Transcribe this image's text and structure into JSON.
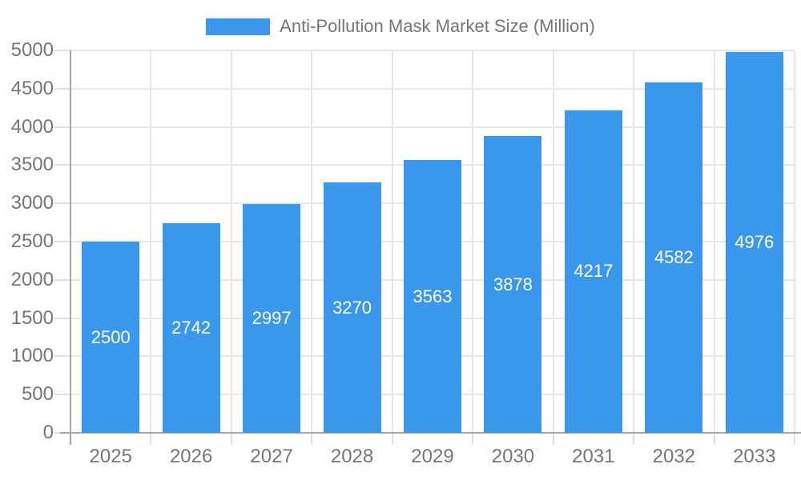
{
  "chart_data": {
    "type": "bar",
    "title": "Anti-Pollution Mask Market Size (Million)",
    "categories": [
      "2025",
      "2026",
      "2027",
      "2028",
      "2029",
      "2030",
      "2031",
      "2032",
      "2033"
    ],
    "values": [
      2500,
      2742,
      2997,
      3270,
      3563,
      3878,
      4217,
      4582,
      4976
    ],
    "series": [
      {
        "name": "Anti-Pollution Mask Market Size (Million)",
        "values": [
          2500,
          2742,
          2997,
          3270,
          3563,
          3878,
          4217,
          4582,
          4976
        ]
      }
    ],
    "xlabel": "",
    "ylabel": "",
    "ylim": [
      0,
      5000
    ],
    "ytick_step": 500,
    "yticks": [
      0,
      500,
      1000,
      1500,
      2000,
      2500,
      3000,
      3500,
      4000,
      4500,
      5000
    ],
    "grid": "both",
    "legend_position": "top-center",
    "value_label_position": "inside-center"
  },
  "colors": {
    "bar_fill": "#3998EC",
    "value_label": "#FFFFFF",
    "axis_label": "#757575",
    "legend_text": "#757575",
    "grid_line": "#E7E7E7",
    "tick_mark": "#E0E0E0",
    "axis_line": "#A6A6A6",
    "background": "#FFFFFF"
  }
}
